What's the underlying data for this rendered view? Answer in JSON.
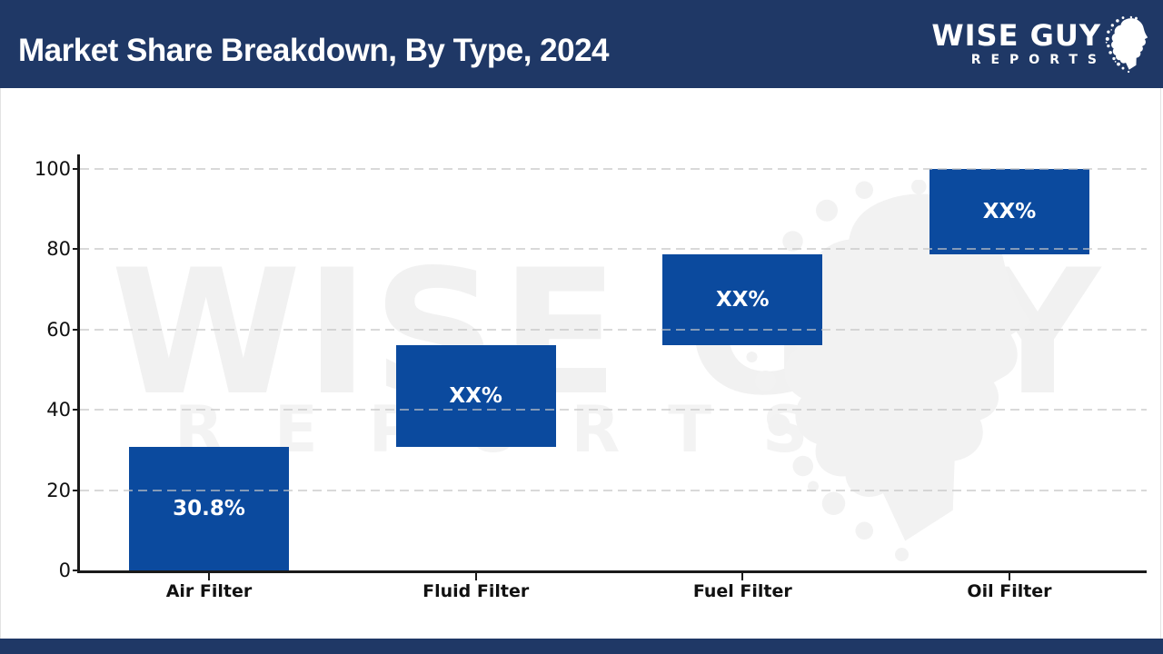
{
  "header": {
    "title": "Market Share Breakdown, By Type, 2024",
    "bg_color": "#1F3866",
    "logo": {
      "line1": "WISE GUY",
      "line2": "REPORTS",
      "icon": "dotted-face-profile"
    }
  },
  "watermark": {
    "line1": "WISE GUY",
    "line2": "REPORTS"
  },
  "chart_data": {
    "type": "bar",
    "subtype": "waterfall",
    "title": "Market Share Breakdown, By Type, 2024",
    "categories": [
      "Air Filter",
      "Fluid Filter",
      "Fuel Filter",
      "Oil Filter"
    ],
    "segments": [
      {
        "category": "Air Filter",
        "start": 0,
        "end": 30.8,
        "label": "30.8%"
      },
      {
        "category": "Fluid Filter",
        "start": 30.8,
        "end": 56.0,
        "label": "XX%"
      },
      {
        "category": "Fuel Filter",
        "start": 56.0,
        "end": 78.8,
        "label": "XX%"
      },
      {
        "category": "Oil Filter",
        "start": 78.8,
        "end": 100,
        "label": "XX%"
      }
    ],
    "xlabel": "",
    "ylabel": "",
    "ylim": [
      0,
      105
    ],
    "yticks": [
      0,
      20,
      40,
      60,
      80,
      100
    ],
    "grid": "horizontal-dashed",
    "legend": "none",
    "bar_color": "#0B4A9E",
    "bar_label_color": "#FFFFFF"
  },
  "footer": {
    "bg_color": "#1F3866"
  }
}
